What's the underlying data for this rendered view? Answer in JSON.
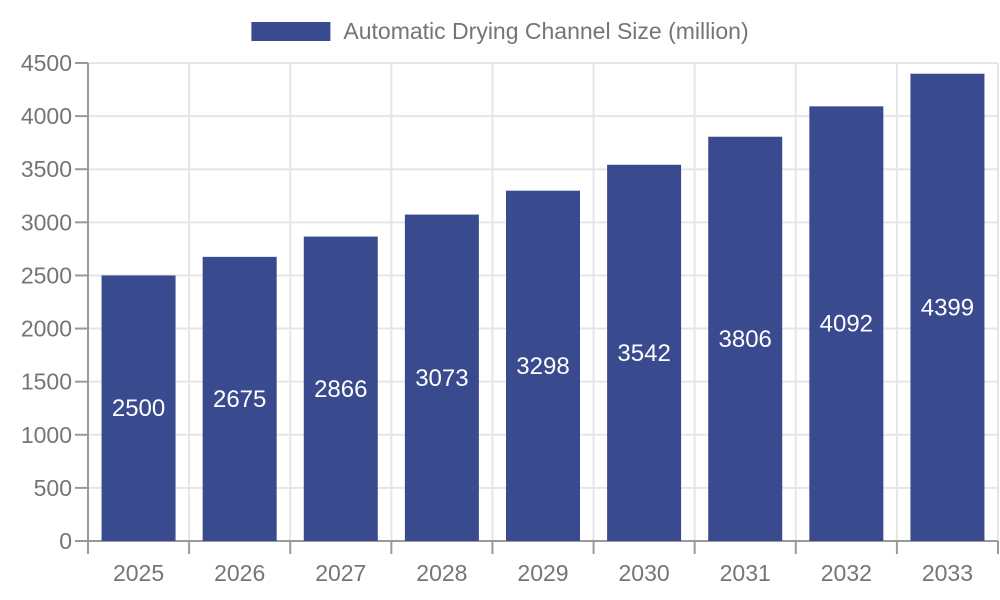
{
  "legend": {
    "label": "Automatic Drying Channel Size (million)"
  },
  "chart_data": {
    "type": "bar",
    "title": "Automatic Drying Channel Size (million)",
    "categories": [
      "2025",
      "2026",
      "2027",
      "2028",
      "2029",
      "2030",
      "2031",
      "2032",
      "2033"
    ],
    "values": [
      2500,
      2675,
      2866,
      3073,
      3298,
      3542,
      3806,
      4092,
      4399
    ],
    "series": [
      {
        "name": "Automatic Drying Channel Size (million)",
        "values": [
          2500,
          2675,
          2866,
          3073,
          3298,
          3542,
          3806,
          4092,
          4399
        ]
      }
    ],
    "bar_value_labels": [
      "2500",
      "2675",
      "2866",
      "3073",
      "3298",
      "3542",
      "3806",
      "4092",
      "4399"
    ],
    "xlabel": "",
    "ylabel": "",
    "ylim": [
      0,
      4500
    ],
    "yticks": [
      0,
      500,
      1000,
      1500,
      2000,
      2500,
      3000,
      3500,
      4000,
      4500
    ],
    "grid": true,
    "legend_position": "top",
    "colors": {
      "bar": "#3A4A8F",
      "grid": "#E6E6E6",
      "axis": "#9A9A9A",
      "tick_text": "#757575",
      "bar_label": "#FFFFFF",
      "background": "#FFFFFF"
    }
  }
}
